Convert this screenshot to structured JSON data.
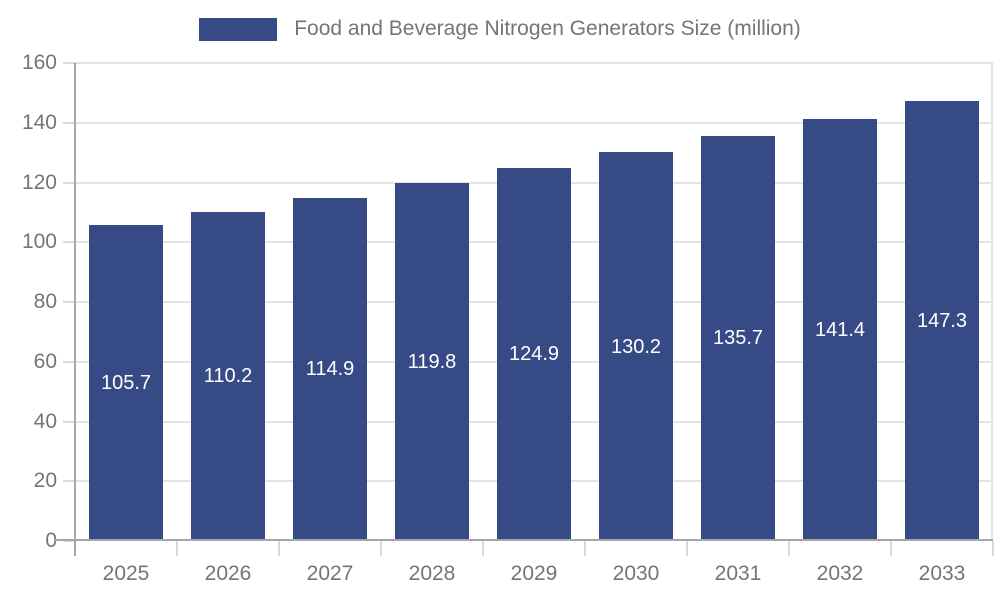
{
  "chart_data": {
    "type": "bar",
    "title": "Food and Beverage Nitrogen Generators Size (million)",
    "categories": [
      "2025",
      "2026",
      "2027",
      "2028",
      "2029",
      "2030",
      "2031",
      "2032",
      "2033"
    ],
    "values": [
      105.7,
      110.2,
      114.9,
      119.8,
      124.9,
      130.2,
      135.7,
      141.4,
      147.3
    ],
    "value_labels": [
      "105.7",
      "110.2",
      "114.9",
      "119.8",
      "124.9",
      "130.2",
      "135.7",
      "141.4",
      "147.3"
    ],
    "xlabel": "",
    "ylabel": "",
    "ylim": [
      0,
      160
    ],
    "yticks": [
      0,
      20,
      40,
      60,
      80,
      100,
      120,
      140,
      160
    ],
    "grid": true,
    "legend_position": "top-center",
    "colors": {
      "bar": "#364a86",
      "bar_label_text": "#ffffff",
      "axis_text": "#757575",
      "grid": "#e3e3e3",
      "axis_line": "#a6a6a6",
      "tick": "#d9d9d9",
      "background": "#ffffff"
    }
  }
}
